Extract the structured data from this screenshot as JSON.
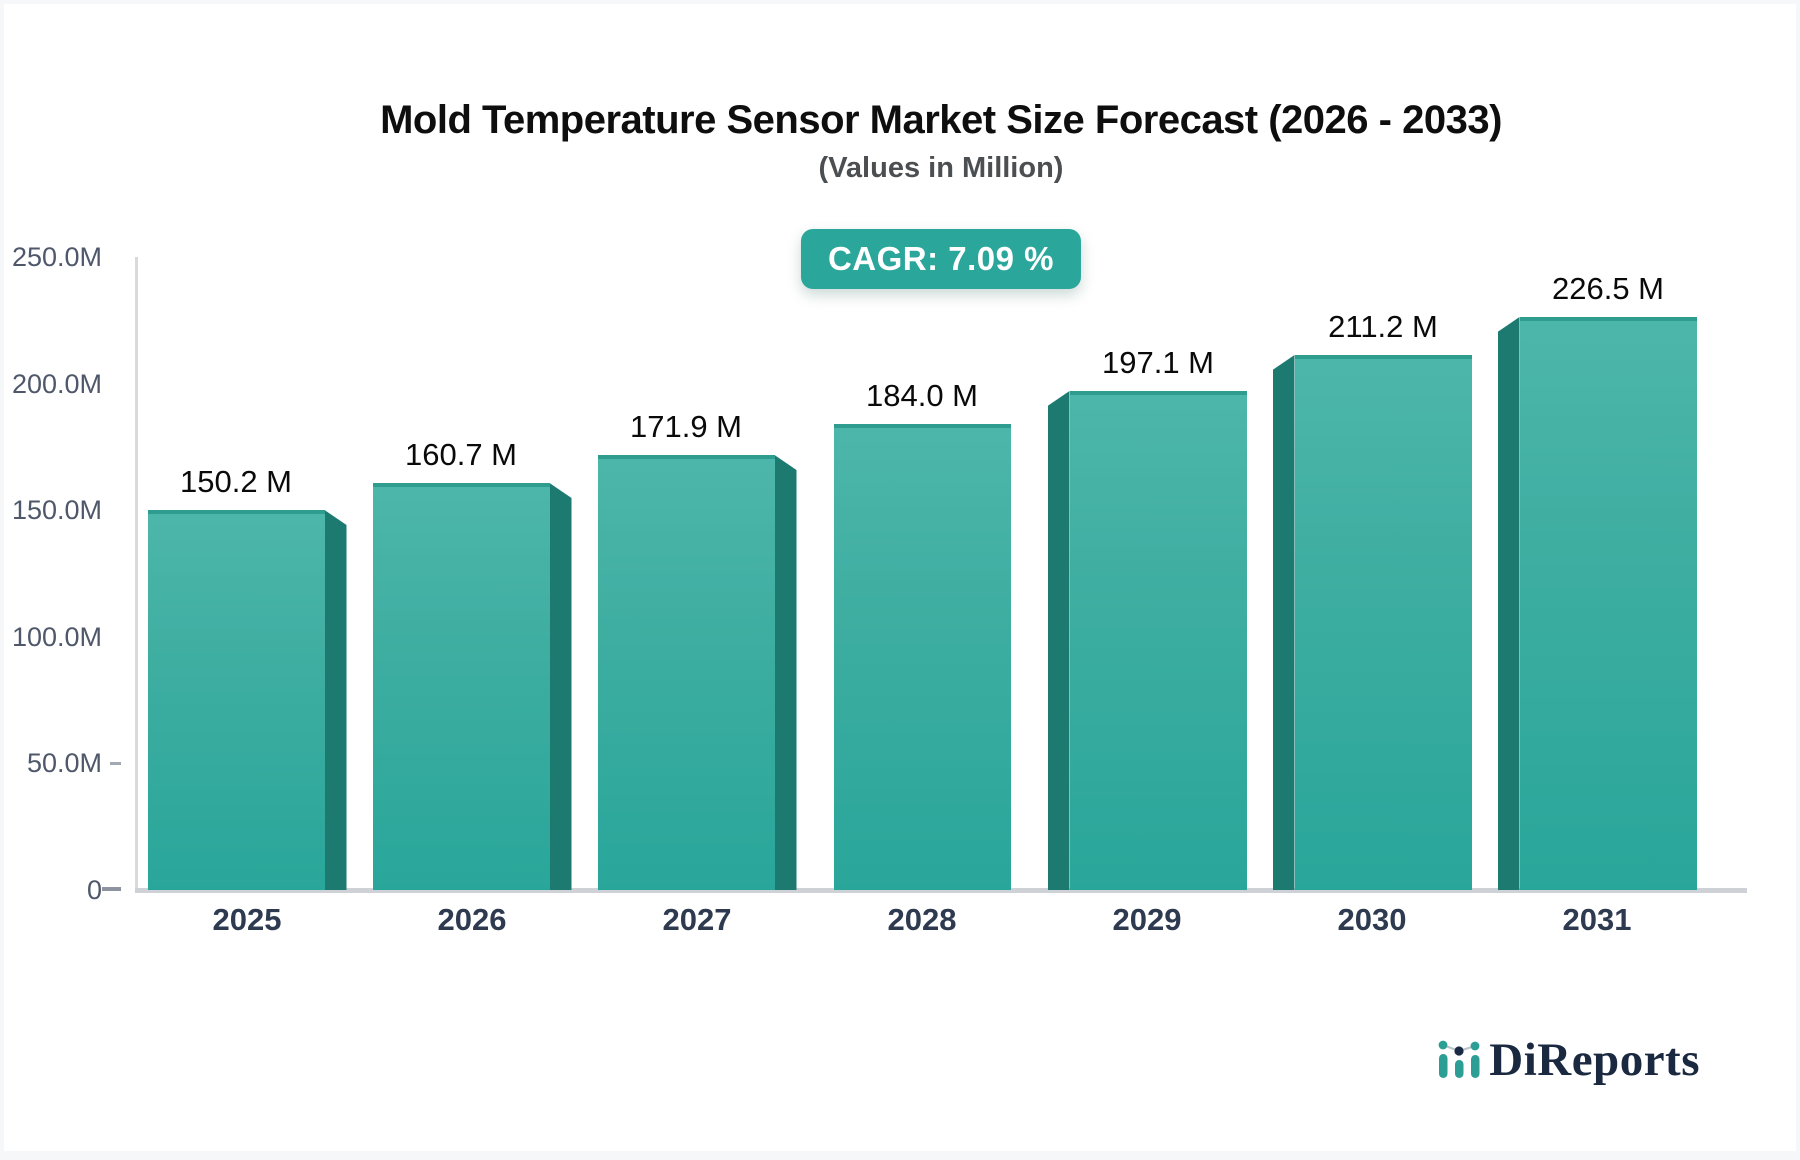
{
  "page": {
    "background": "#f6f7f9",
    "card_background": "#ffffff"
  },
  "header": {
    "title": "Mold Temperature Sensor Market Size Forecast (2026 - 2033)",
    "subtitle": "(Values in Million)"
  },
  "badge": {
    "label": "CAGR: 7.09 %",
    "background": "#2aa69b",
    "text_color": "#ffffff"
  },
  "chart_data": {
    "type": "bar",
    "title": "Mold Temperature Sensor Market Size Forecast (2026 - 2033)",
    "subtitle": "(Values in Million)",
    "categories": [
      "2025",
      "2026",
      "2027",
      "2028",
      "2029",
      "2030",
      "2031"
    ],
    "values": [
      150.2,
      160.7,
      171.9,
      184.0,
      197.1,
      211.2,
      226.5
    ],
    "value_labels": [
      "150.2 M",
      "160.7 M",
      "171.9 M",
      "184.0 M",
      "197.1 M",
      "211.2 M",
      "226.5 M"
    ],
    "unit": "Million",
    "xlabel": "",
    "ylabel": "",
    "ylim": [
      0,
      250
    ],
    "yticks": [
      "0",
      "50.0M",
      "100.0M",
      "150.0M",
      "200.0M",
      "250.0M"
    ],
    "grid": false,
    "legend": "none",
    "bar_face_top_color": "#4db6aa",
    "bar_face_bottom_color": "#29a69a",
    "bar_cap_color": "#2f9c90",
    "bar_side_color": "#1d7a71",
    "perspective": "center-vanishing-3d"
  },
  "logo": {
    "text": "DiReports",
    "icon": "bar-chart-trend-icon",
    "teal": "#2d9e95",
    "navy": "#1b2a44",
    "text_color": "#1a2940",
    "connector_color": "#b9c4c9"
  }
}
